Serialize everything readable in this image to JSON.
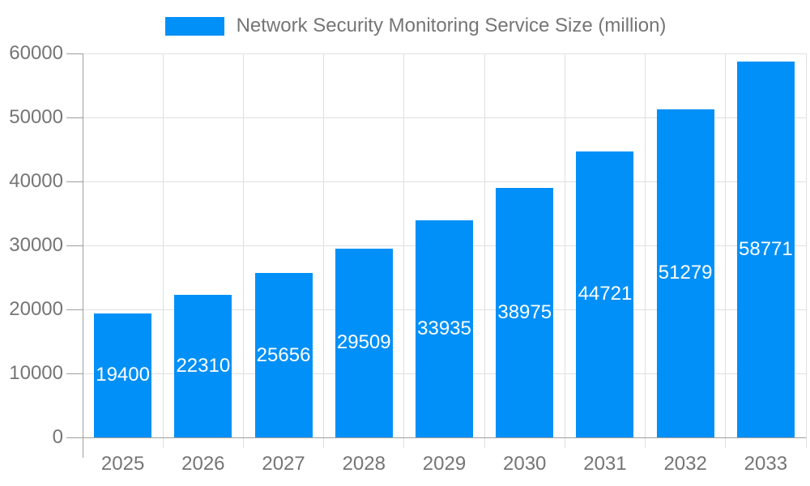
{
  "chart_data": {
    "type": "bar",
    "title": "Network Security Monitoring Service Size (million)",
    "legend": {
      "label": "Network Security Monitoring Service Size (million)",
      "position": "top-center"
    },
    "categories": [
      "2025",
      "2026",
      "2027",
      "2028",
      "2029",
      "2030",
      "2031",
      "2032",
      "2033"
    ],
    "series": [
      {
        "name": "Network Security Monitoring Service Size (million)",
        "values": [
          19400,
          22310,
          25656,
          29509,
          33935,
          38975,
          44721,
          51279,
          58771
        ]
      }
    ],
    "value_labels": [
      "19400",
      "22310",
      "25656",
      "29509",
      "33935",
      "38975",
      "44721",
      "51279",
      "58771"
    ],
    "value_label_position": "inside-center",
    "xlabel": "",
    "ylabel": "",
    "ylim": [
      0,
      60000
    ],
    "yticks": [
      0,
      10000,
      20000,
      30000,
      40000,
      50000,
      60000
    ],
    "ytick_labels": [
      "0",
      "10000",
      "20000",
      "30000",
      "40000",
      "50000",
      "60000"
    ],
    "grid": true,
    "colors": {
      "bar": "#0190f7",
      "axis_text": "#757575",
      "grid_line": "#e0e0e0",
      "axis_line": "#9e9e9e",
      "bar_label_text": "#ffffff",
      "background": "#ffffff"
    }
  }
}
